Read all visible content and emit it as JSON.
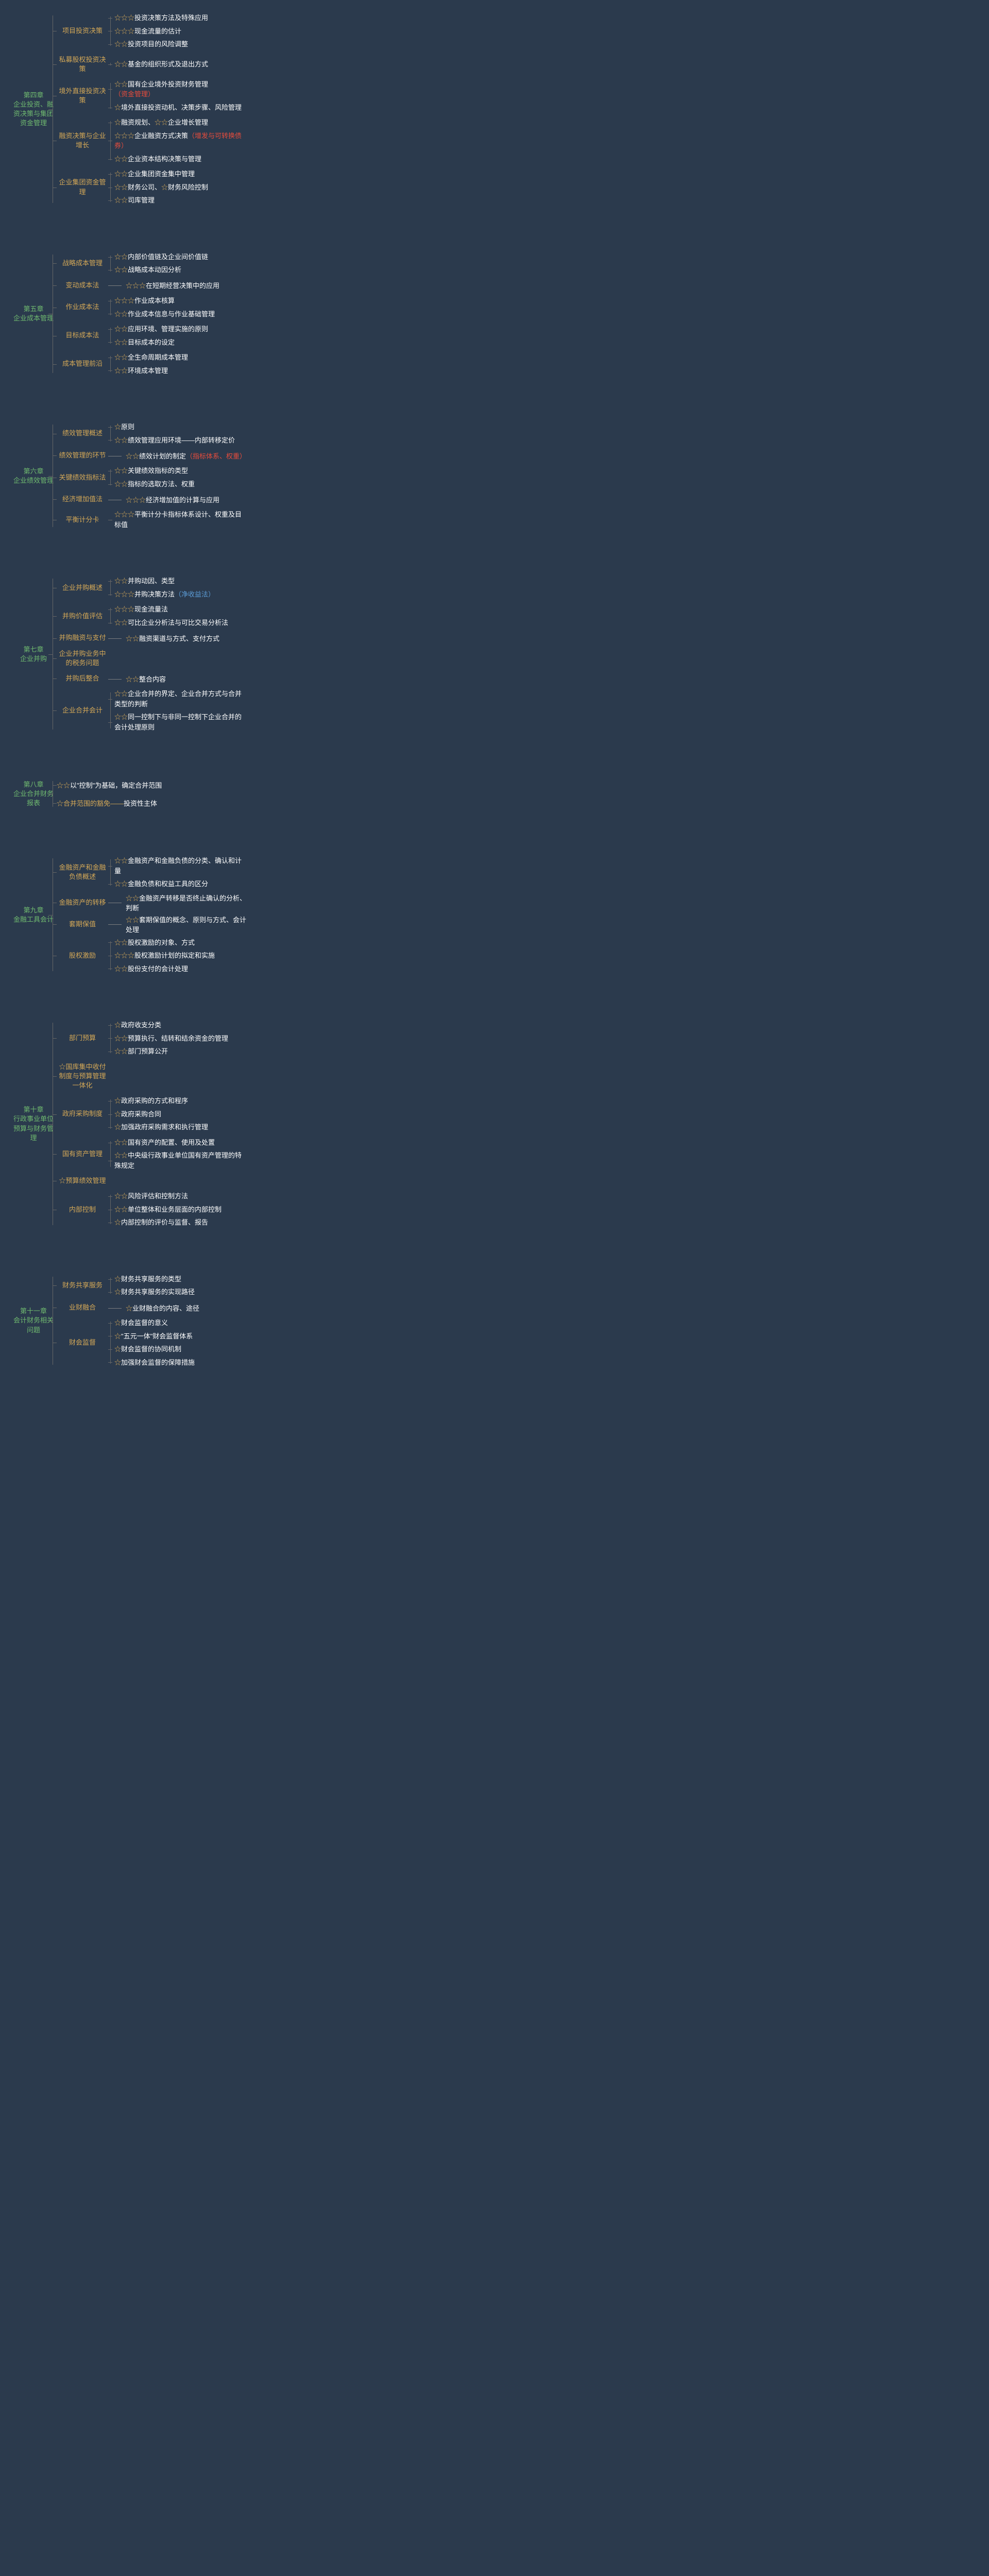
{
  "background_color": "#2b3a4d",
  "chapter_color": "#6fb96f",
  "section_color": "#d4a857",
  "text_color": "#ffffff",
  "highlight_red": "#e74c3c",
  "highlight_blue": "#5b9bd5",
  "star_color": "#d4a857",
  "font_size": 13,
  "chapters": [
    {
      "title": "第四章\n企业投资、融资决策与集团资金管理",
      "sections": [
        {
          "title": "项目投资决策",
          "items": [
            {
              "stars": 3,
              "text": "投资决策方法及特殊应用"
            },
            {
              "stars": 3,
              "text": "现金流量的估计"
            },
            {
              "stars": 2,
              "text": "投资项目的风险调整"
            }
          ]
        },
        {
          "title": "私募股权投资决策",
          "items": [
            {
              "stars": 2,
              "text": "基金的组织形式及退出方式"
            }
          ]
        },
        {
          "title": "境外直接投资决策",
          "items": [
            {
              "stars": 2,
              "text": "国有企业境外投资财务管理",
              "suffix_red": "（资金管理）"
            },
            {
              "stars": 1,
              "text": "境外直接投资动机、决策步骤、风险管理"
            }
          ]
        },
        {
          "title": "融资决策与企业增长",
          "items": [
            {
              "stars": 1,
              "text": "融资规划、",
              "inline": {
                "stars": 2,
                "text": "企业增长管理"
              }
            },
            {
              "stars": 3,
              "text": "企业融资方式决策",
              "suffix_red": "（增发与可转换债券）"
            },
            {
              "stars": 2,
              "text": "企业资本结构决策与管理"
            }
          ]
        },
        {
          "title": "企业集团资金管理",
          "items": [
            {
              "stars": 2,
              "text": "企业集团资金集中管理"
            },
            {
              "stars": 2,
              "text": "财务公司、",
              "inline": {
                "stars": 1,
                "text": "财务风险控制"
              }
            },
            {
              "stars": 2,
              "text": "司库管理"
            }
          ]
        }
      ]
    },
    {
      "title": "第五章\n企业成本管理",
      "sections": [
        {
          "title": "战略成本管理",
          "items": [
            {
              "stars": 2,
              "text": "内部价值链及企业间价值链"
            },
            {
              "stars": 2,
              "text": "战略成本动因分析"
            }
          ]
        },
        {
          "title": "变动成本法",
          "inline_only": {
            "stars": 3,
            "text": "在短期经营决策中的应用"
          }
        },
        {
          "title": "作业成本法",
          "items": [
            {
              "stars": 3,
              "text": "作业成本核算"
            },
            {
              "stars": 2,
              "text": "作业成本信息与作业基础管理"
            }
          ]
        },
        {
          "title": "目标成本法",
          "items": [
            {
              "stars": 2,
              "text": "应用环境、管理实施的原则"
            },
            {
              "stars": 2,
              "text": "目标成本的设定"
            }
          ]
        },
        {
          "title": "成本管理前沿",
          "items": [
            {
              "stars": 2,
              "text": "全生命周期成本管理"
            },
            {
              "stars": 2,
              "text": "环境成本管理"
            }
          ]
        }
      ]
    },
    {
      "title": "第六章\n企业绩效管理",
      "sections": [
        {
          "title": "绩效管理概述",
          "items": [
            {
              "stars": 1,
              "text": "原则"
            },
            {
              "stars": 2,
              "text": "绩效管理应用环境——内部转移定价"
            }
          ]
        },
        {
          "title": "绩效管理的环节",
          "inline_only": {
            "stars": 2,
            "text": "绩效计划的制定",
            "suffix_red": "（指标体系、权重）"
          }
        },
        {
          "title": "关键绩效指标法",
          "items": [
            {
              "stars": 2,
              "text": "关键绩效指标的类型"
            },
            {
              "stars": 2,
              "text": "指标的选取方法、权重"
            }
          ]
        },
        {
          "title": "经济增加值法",
          "inline_only": {
            "stars": 3,
            "text": "经济增加值的计算与应用"
          }
        },
        {
          "title": "平衡计分卡",
          "items_nobracket": [
            {
              "stars": 3,
              "text": "平衡计分卡指标体系设计、权重及目标值"
            }
          ]
        }
      ]
    },
    {
      "title": "第七章\n企业并购",
      "sections": [
        {
          "title": "企业并购概述",
          "items": [
            {
              "stars": 2,
              "text": "并购动因、类型"
            },
            {
              "stars": 3,
              "text": "并购决策方法",
              "suffix_blue": "（净收益法）"
            }
          ]
        },
        {
          "title": "并购价值评估",
          "items": [
            {
              "stars": 3,
              "text": "现金流量法"
            },
            {
              "stars": 2,
              "text": "可比企业分析法与可比交易分析法"
            }
          ]
        },
        {
          "title": "并购融资与支付",
          "inline_only": {
            "stars": 2,
            "text": "融资渠道与方式、支付方式"
          }
        },
        {
          "title": "企业并购业务中的税务问题",
          "title_only": true
        },
        {
          "title": "并购后整合",
          "inline_only": {
            "stars": 2,
            "text": "整合内容"
          }
        },
        {
          "title": "企业合并会计",
          "items": [
            {
              "stars": 2,
              "text": "企业合并的界定、企业合并方式与合并类型的判断"
            },
            {
              "stars": 2,
              "text": "同一控制下与非同一控制下企业合并的会计处理原则"
            }
          ]
        }
      ]
    },
    {
      "title": "第八章\n企业合并财务报表",
      "sections_flat": [
        {
          "stars": 2,
          "text": "以\"控制\"为基础，确定合并范围"
        },
        {
          "stars": 1,
          "text_prefix": "合并范围的豁免——",
          "text": "投资性主体"
        }
      ]
    },
    {
      "title": "第九章\n金融工具会计",
      "sections": [
        {
          "title": "金融资产和金融负债概述",
          "items": [
            {
              "stars": 2,
              "text": "金融资产和金融负债的分类、确认和计量"
            },
            {
              "stars": 2,
              "text": "金融负债和权益工具的区分"
            }
          ]
        },
        {
          "title": "金融资产的转移",
          "inline_only": {
            "stars": 2,
            "text": "金融资产转移是否终止确认的分析、判断"
          }
        },
        {
          "title": "套期保值",
          "inline_only": {
            "stars": 2,
            "text": "套期保值的概念、原则与方式、会计处理"
          }
        },
        {
          "title": "股权激励",
          "items": [
            {
              "stars": 2,
              "text": "股权激励的对象、方式"
            },
            {
              "stars": 3,
              "text": "股权激励计划的拟定和实施"
            },
            {
              "stars": 2,
              "text": "股份支付的会计处理"
            }
          ]
        }
      ]
    },
    {
      "title": "第十章\n行政事业单位预算与财务管理",
      "sections": [
        {
          "title": "部门预算",
          "items": [
            {
              "stars": 1,
              "text": "政府收支分类"
            },
            {
              "stars": 2,
              "text": "预算执行、结转和结余资金的管理"
            },
            {
              "stars": 2,
              "text": "部门预算公开"
            }
          ]
        },
        {
          "title_stars": 1,
          "title": "国库集中收付制度与预算管理一体化",
          "title_only": true
        },
        {
          "title": "政府采购制度",
          "items": [
            {
              "stars": 1,
              "text": "政府采购的方式和程序"
            },
            {
              "stars": 1,
              "text": "政府采购合同"
            },
            {
              "stars": 1,
              "text": "加强政府采购需求和执行管理"
            }
          ]
        },
        {
          "title": "国有资产管理",
          "items": [
            {
              "stars": 2,
              "text": "国有资产的配置、使用及处置"
            },
            {
              "stars": 2,
              "text": "中央级行政事业单位国有资产管理的特殊规定"
            }
          ]
        },
        {
          "title_stars": 1,
          "title": "预算绩效管理",
          "title_only": true
        },
        {
          "title": "内部控制",
          "items": [
            {
              "stars": 2,
              "text": "风险评估和控制方法"
            },
            {
              "stars": 2,
              "text": "单位整体和业务层面的内部控制"
            },
            {
              "stars": 1,
              "text": "内部控制的评价与监督、报告"
            }
          ]
        }
      ]
    },
    {
      "title": "第十一章\n会计财务相关问题",
      "sections": [
        {
          "title": "财务共享服务",
          "items": [
            {
              "stars": 1,
              "text": "财务共享服务的类型"
            },
            {
              "stars": 1,
              "text": "财务共享服务的实现路径"
            }
          ]
        },
        {
          "title": "业财融合",
          "inline_only": {
            "stars": 1,
            "text": "业财融合的内容、途径"
          }
        },
        {
          "title": "财会监督",
          "items": [
            {
              "stars": 1,
              "text": "财会监督的意义"
            },
            {
              "stars": 1,
              "text": "\"五元一体\"财会监督体系"
            },
            {
              "stars": 1,
              "text": "财会监督的协同机制"
            },
            {
              "stars": 1,
              "text": "加强财会监督的保障措施"
            }
          ]
        }
      ]
    }
  ]
}
